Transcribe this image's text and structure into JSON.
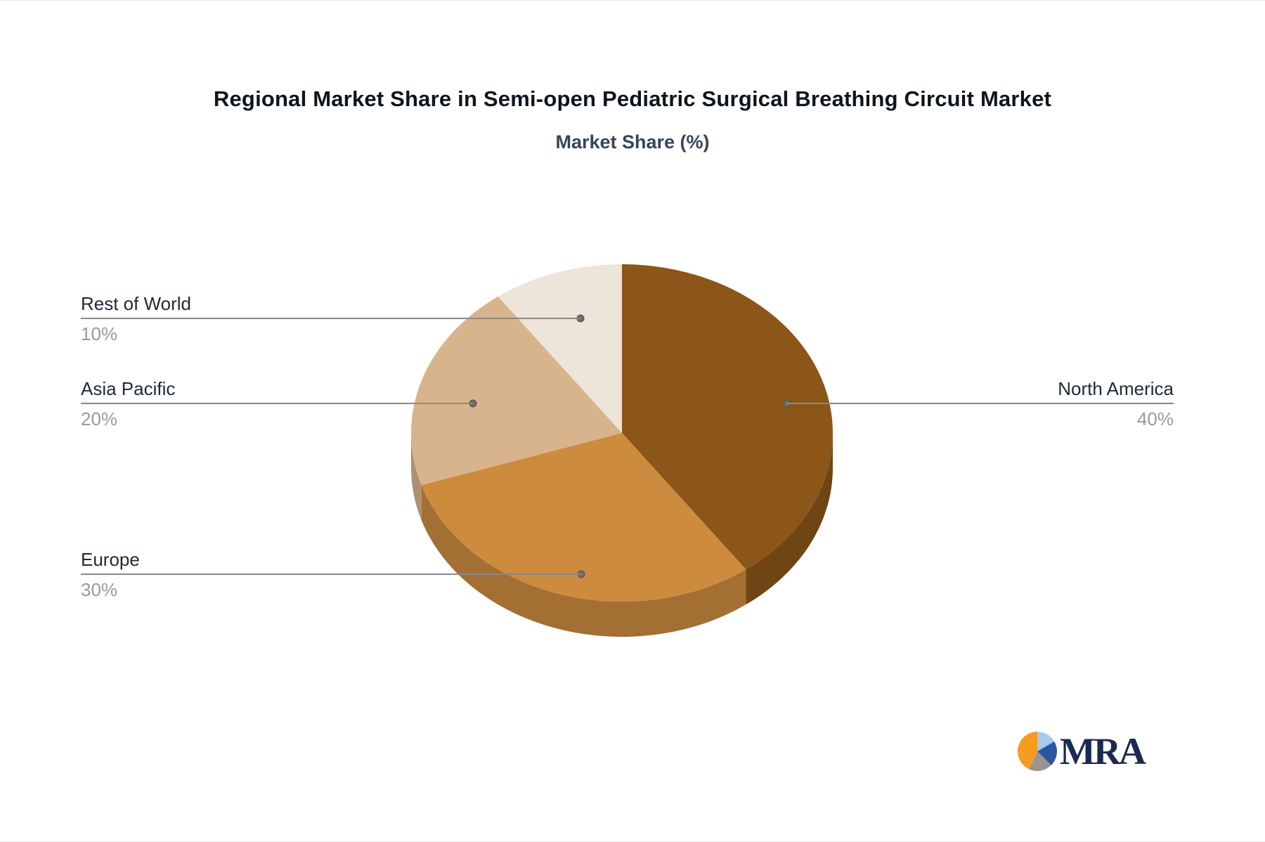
{
  "chart_data": {
    "type": "pie",
    "style_3d": true,
    "title": "Regional Market Share in Semi-open Pediatric Surgical Breathing Circuit Market",
    "subtitle": "Market Share (%)",
    "start_angle_deg": 0,
    "legend": false,
    "slices": [
      {
        "label": "North America",
        "value": 40,
        "pct_label": "40%",
        "color": "#8B5618"
      },
      {
        "label": "Europe",
        "value": 30,
        "pct_label": "30%",
        "color": "#CD8B3E"
      },
      {
        "label": "Asia Pacific",
        "value": 20,
        "pct_label": "20%",
        "color": "#D7B48C"
      },
      {
        "label": "Rest of World",
        "value": 10,
        "pct_label": "10%",
        "color": "#EDE4DA"
      }
    ],
    "style": {
      "connector_color": "#888888",
      "label_color": "#1e2a36",
      "pct_color": "#9a9a9a",
      "background": "#ffffff"
    }
  },
  "logo": {
    "text": "MRA",
    "colors": {
      "orange": "#F59D20",
      "light_blue": "#A9CBE8",
      "dark_blue": "#2B55A0",
      "gray": "#9A958F",
      "text_color": "#1B2A52"
    }
  }
}
